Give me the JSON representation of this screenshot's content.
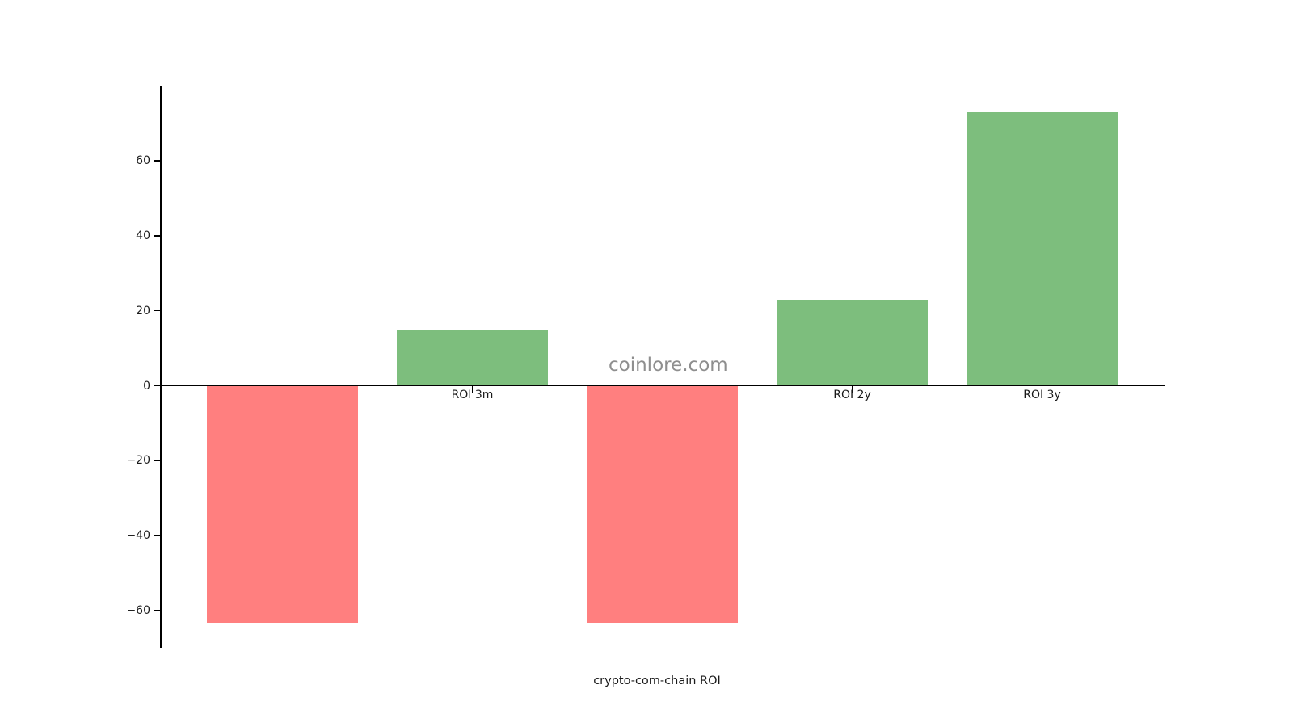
{
  "chart_data": {
    "type": "bar",
    "title": "crypto-com-chain ROI",
    "watermark": "coinlore.com",
    "categories": [
      "",
      "ROI 3m",
      "",
      "ROI 2y",
      "ROI 3y"
    ],
    "values": [
      -63,
      15,
      -63,
      23,
      73
    ],
    "value_unit": "percent",
    "yticks": [
      {
        "value": 60,
        "label": "60"
      },
      {
        "value": 40,
        "label": "40"
      },
      {
        "value": 20,
        "label": "20"
      },
      {
        "value": 0,
        "label": "0"
      },
      {
        "value": -20,
        "label": "−20"
      },
      {
        "value": -40,
        "label": "−40"
      },
      {
        "value": -60,
        "label": "−60"
      }
    ],
    "ylim": [
      -70,
      80
    ],
    "grid": false,
    "legend": false,
    "layout_note_hidden_labels": "x tick labels of bars 1 and 3 are covered by the negative bars",
    "colors": {
      "positive_bar": "#7dbe7d",
      "negative_bar": "#ff7f7f",
      "axis": "#000000",
      "tick_label": "#1a1a1a",
      "title": "#1a1a1a",
      "watermark": "#8e8e8e",
      "background": "#ffffff"
    }
  }
}
